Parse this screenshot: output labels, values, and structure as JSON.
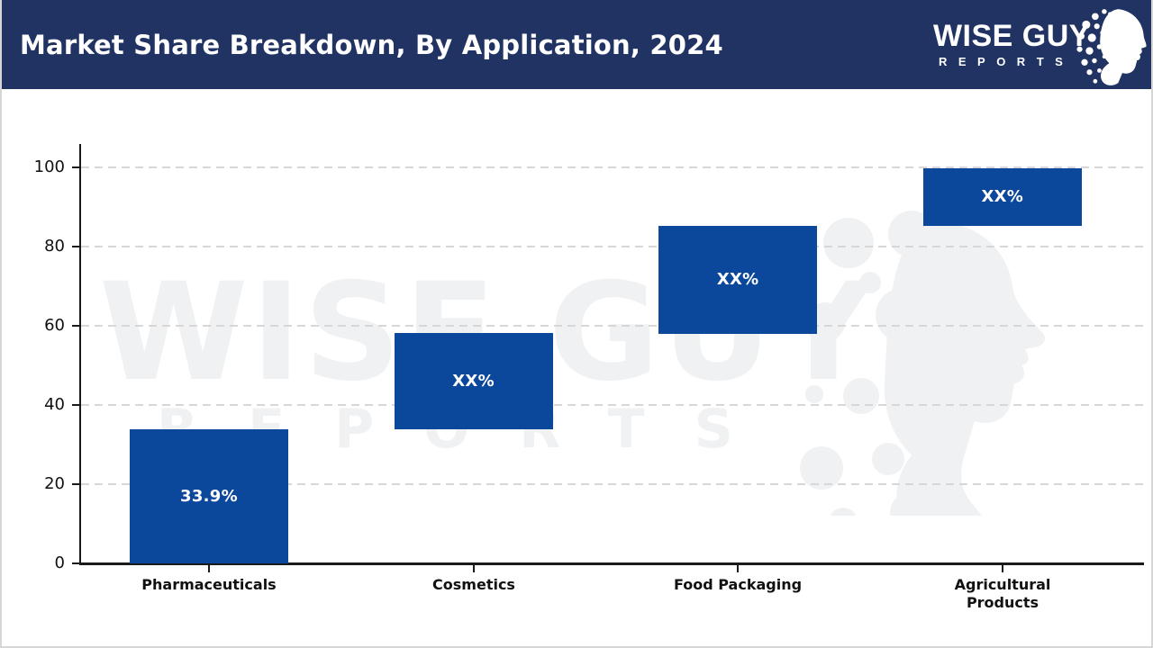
{
  "header": {
    "title": "Market Share Breakdown, By Application, 2024",
    "bg_color": "#203363",
    "logo": {
      "line1": "WISE GUY",
      "line2": "REPORTS"
    }
  },
  "watermark": {
    "line1": "WISE GUY",
    "line2": "REPORTS"
  },
  "chart_data": {
    "type": "bar",
    "subtype": "waterfall",
    "title": "Market Share Breakdown, By Application, 2024",
    "categories": [
      "Pharmaceuticals",
      "Cosmetics",
      "Food Packaging",
      "Agricultural Products"
    ],
    "bars": [
      {
        "label": "33.9%",
        "start": 0,
        "end": 33.9
      },
      {
        "label": "XX%",
        "start": 33.9,
        "end": 58.2
      },
      {
        "label": "XX%",
        "start": 58.0,
        "end": 85.3
      },
      {
        "label": "XX%",
        "start": 85.3,
        "end": 99.8
      }
    ],
    "bar_color": "#0b479b",
    "label_color": "#ffffff",
    "ylim": [
      0,
      105
    ],
    "yticks": [
      0,
      20,
      40,
      60,
      80,
      100
    ],
    "ytick_labels": [
      "0",
      "20",
      "40",
      "60",
      "80",
      "100"
    ],
    "grid": "horizontal dashed",
    "grid_color": "#d7d7d7",
    "legend": "none"
  }
}
